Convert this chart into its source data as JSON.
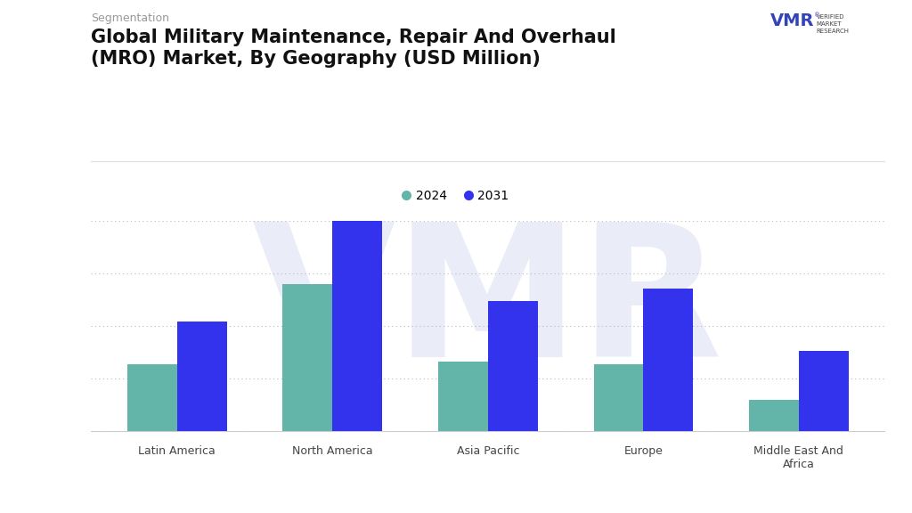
{
  "title_small": "Segmentation",
  "title": "Global Military Maintenance, Repair And Overhaul\n(MRO) Market, By Geography (USD Million)",
  "categories": [
    "Latin America",
    "North America",
    "Asia Pacific",
    "Europe",
    "Middle East And\nAfrica"
  ],
  "values_2024": [
    32,
    70,
    33,
    32,
    15
  ],
  "values_2031": [
    52,
    100,
    62,
    68,
    38
  ],
  "color_2024": "#62B5A8",
  "color_2031": "#3333EE",
  "legend_2024": "2024",
  "legend_2031": "2031",
  "background_color": "#FFFFFF",
  "watermark_color": "#EAEDF8",
  "grid_color": "#CCCCCC",
  "bar_width": 0.32,
  "ylim": [
    0,
    115
  ],
  "title_fontsize": 15,
  "subtitle_fontsize": 9,
  "axis_tick_fontsize": 9,
  "legend_fontsize": 10
}
